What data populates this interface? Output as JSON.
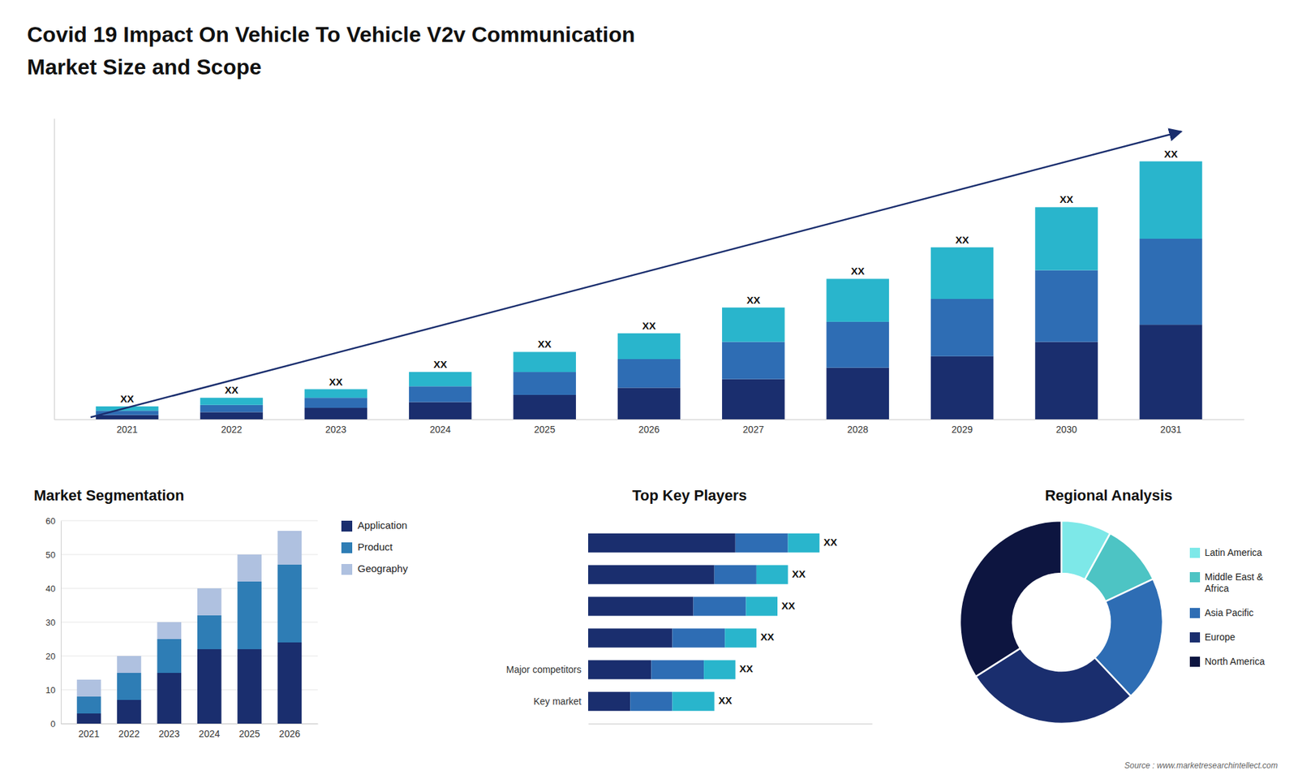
{
  "chart_data": [
    {
      "type": "bar",
      "title": "Covid 19 Impact On Vehicle To Vehicle V2v Communication",
      "subtitle": "Market Size and Scope",
      "categories": [
        "2021",
        "2022",
        "2023",
        "2024",
        "2025",
        "2026",
        "2027",
        "2028",
        "2029",
        "2030",
        "2031"
      ],
      "stacked": true,
      "series": [
        {
          "color": "#1a2e6e",
          "values": [
            1.5,
            2.5,
            4,
            6,
            8.5,
            11,
            14,
            18,
            22,
            27,
            33
          ]
        },
        {
          "color": "#2e6db4",
          "values": [
            1.5,
            2.5,
            3.5,
            5.5,
            8,
            10,
            13,
            16,
            20,
            25,
            30
          ]
        },
        {
          "color": "#29b5cc",
          "values": [
            1.5,
            2.5,
            3,
            5,
            7,
            9,
            12,
            15,
            18,
            22,
            27
          ]
        }
      ],
      "ylim": [
        0,
        105
      ],
      "tick_labels": "x",
      "annotations": [
        "XX",
        "XX",
        "XX",
        "XX",
        "XX",
        "XX",
        "XX",
        "XX",
        "XX",
        "XX",
        "XX"
      ]
    },
    {
      "type": "bar",
      "title": "Market Segmentation",
      "categories": [
        "2021",
        "2022",
        "2023",
        "2024",
        "2025",
        "2026"
      ],
      "stacked": true,
      "series": [
        {
          "name": "Application",
          "color": "#1a2e6e",
          "values": [
            3,
            7,
            15,
            22,
            22,
            24
          ]
        },
        {
          "name": "Product",
          "color": "#2e7db5",
          "values": [
            5,
            8,
            10,
            10,
            20,
            23
          ]
        },
        {
          "name": "Geography",
          "color": "#afc1e0",
          "values": [
            5,
            5,
            5,
            8,
            8,
            10
          ]
        }
      ],
      "ylim": [
        0,
        60
      ],
      "yticks": [
        0,
        10,
        20,
        30,
        40,
        50,
        60
      ],
      "grid": true,
      "legend": "right"
    },
    {
      "type": "bar",
      "orientation": "horizontal",
      "title": "Top Key Players",
      "categories": [
        null,
        null,
        null,
        null,
        "Major competitors",
        "Key market"
      ],
      "stacked": true,
      "series": [
        {
          "color": "#1a2e6e",
          "values": [
            14,
            12,
            10,
            8,
            6,
            4
          ]
        },
        {
          "color": "#2e6db4",
          "values": [
            5,
            4,
            5,
            5,
            5,
            4
          ]
        },
        {
          "color": "#29b5cc",
          "values": [
            3,
            3,
            3,
            3,
            3,
            4
          ]
        }
      ],
      "xlim": [
        0,
        27
      ],
      "tick_labels": "y",
      "annotations": [
        "XX",
        "XX",
        "XX",
        "XX",
        "XX",
        "XX"
      ]
    },
    {
      "type": "pie",
      "title": "Regional Analysis",
      "categories": [
        "Latin America",
        "Middle East &\nAfrica",
        "Asia Pacific",
        "Europe",
        "North America"
      ],
      "values": [
        8,
        10,
        20,
        28,
        34
      ],
      "colors": [
        "#7de8e8",
        "#4dc4c4",
        "#2e6db4",
        "#1a2e6e",
        "#0d1540"
      ],
      "legend": "right",
      "annotations": [
        "Source : www.marketresearchintellect.com"
      ]
    }
  ]
}
